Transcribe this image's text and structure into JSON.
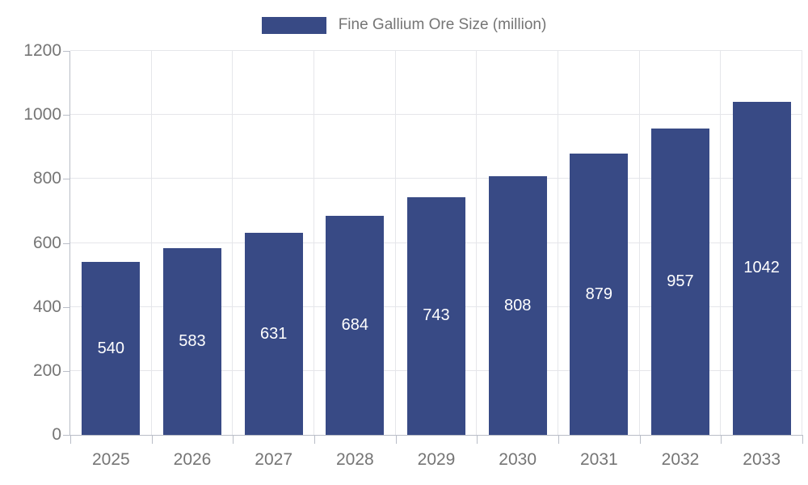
{
  "chart_data": {
    "type": "bar",
    "series_name": "Fine Gallium Ore Size (million)",
    "categories": [
      "2025",
      "2026",
      "2027",
      "2028",
      "2029",
      "2030",
      "2031",
      "2032",
      "2033"
    ],
    "values": [
      540,
      583,
      631,
      684,
      743,
      808,
      879,
      957,
      1042
    ],
    "title": "",
    "xlabel": "",
    "ylabel": "",
    "ylim": [
      0,
      1200
    ],
    "yticks": [
      0,
      200,
      400,
      600,
      800,
      1000,
      1200
    ],
    "grid": true,
    "legend_position": "top-center",
    "bar_color": "#384A85",
    "value_label_color": "#ffffff",
    "axis_text_color": "#757575",
    "gridline_color": "#e5e6ea",
    "axis_line_color": "#b9bdc7"
  }
}
